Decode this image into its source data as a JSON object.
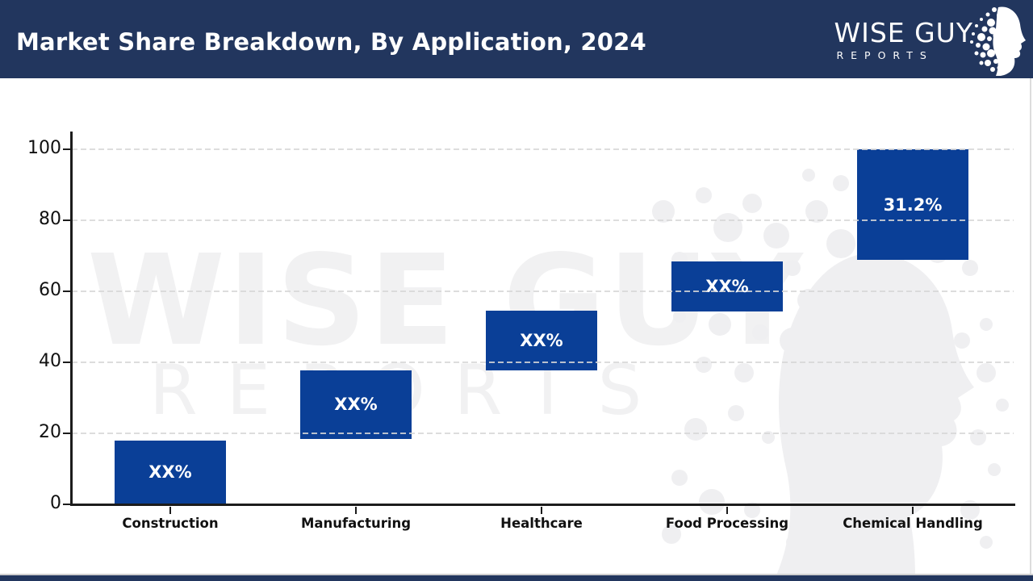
{
  "header": {
    "title": "Market Share Breakdown, By Application, 2024",
    "logo": {
      "brand": "WISE GUY",
      "tagline": "REPORTS"
    }
  },
  "watermark": {
    "brand": "WISE GUY",
    "tagline": "REPORTS"
  },
  "colors": {
    "header_bg": "#22365e",
    "footer_bg": "#22365e",
    "bar": "#0a3f97",
    "axis": "#1c1c1c",
    "grid": "#d9d9d9",
    "watermark": "#f1f1f2",
    "title_text": "#ffffff"
  },
  "chart_data": {
    "type": "bar",
    "subtype": "floating-waterfall",
    "title": "Market Share Breakdown, By Application, 2024",
    "xlabel": "",
    "ylabel": "",
    "categories": [
      "Construction",
      "Manufacturing",
      "Healthcare",
      "Food Processing",
      "Chemical Handling"
    ],
    "segments": [
      {
        "category": "Construction",
        "start": 0,
        "end": 18,
        "label": "XX%"
      },
      {
        "category": "Manufacturing",
        "start": 18.5,
        "end": 37.8,
        "label": "XX%"
      },
      {
        "category": "Healthcare",
        "start": 37.8,
        "end": 54.5,
        "label": "XX%"
      },
      {
        "category": "Food Processing",
        "start": 54.4,
        "end": 68.5,
        "label": "XX%"
      },
      {
        "category": "Chemical Handling",
        "start": 68.8,
        "end": 100,
        "label": "31.2%"
      }
    ],
    "yticks": [
      0,
      20,
      40,
      60,
      80,
      100
    ],
    "ylim": [
      0,
      105
    ],
    "grid": "horizontal-dashed",
    "legend": "none",
    "bar_color": "#0a3f97",
    "value_label_color": "#ffffff"
  }
}
